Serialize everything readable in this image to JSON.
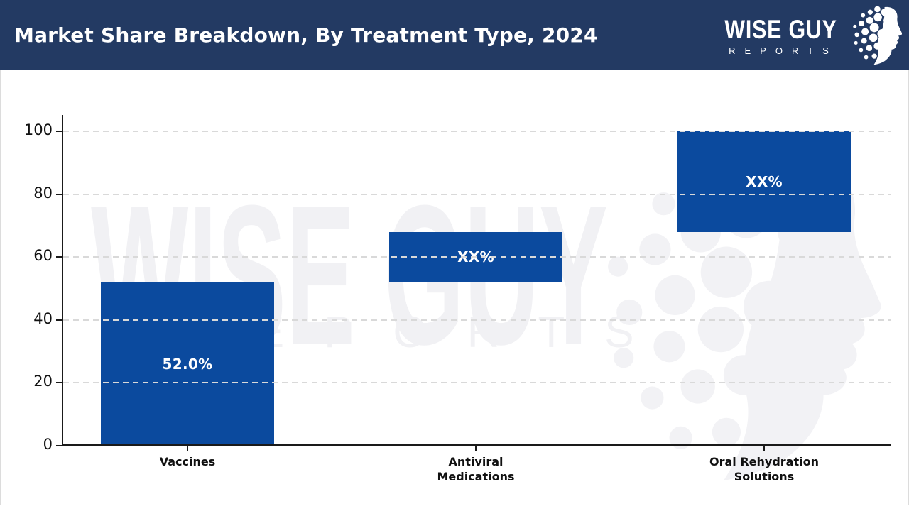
{
  "header": {
    "title": "Market Share Breakdown, By Treatment Type, 2024",
    "bg_color": "#233a63",
    "logo": {
      "line1": "WISE GUY",
      "line2": "REPORTS"
    }
  },
  "watermark": {
    "line1": "WISE GUY",
    "line2": "REPORTS"
  },
  "chart_data": {
    "type": "bar",
    "subtype": "waterfall",
    "title": "Market Share Breakdown, By Treatment Type, 2024",
    "categories": [
      "Vaccines",
      "Antiviral\nMedications",
      "Oral Rehydration\nSolutions"
    ],
    "segments": [
      {
        "category": "Vaccines",
        "start": 0,
        "end": 52,
        "label": "52.0%"
      },
      {
        "category": "Antiviral Medications",
        "start": 52,
        "end": 68,
        "label": "XX%"
      },
      {
        "category": "Oral Rehydration Solutions",
        "start": 68,
        "end": 100,
        "label": "XX%"
      }
    ],
    "xlabel": "",
    "ylabel": "",
    "ylim": [
      0,
      100
    ],
    "yticks": [
      0,
      20,
      40,
      60,
      80,
      100
    ],
    "grid": "horizontal-dashed",
    "legend": "none",
    "bar_color": "#0b4a9e",
    "bar_label_color": "#ffffff",
    "axis_color": "#1a1a1a",
    "grid_color": "#d9d9d9",
    "tick_label_color": "#111111"
  }
}
